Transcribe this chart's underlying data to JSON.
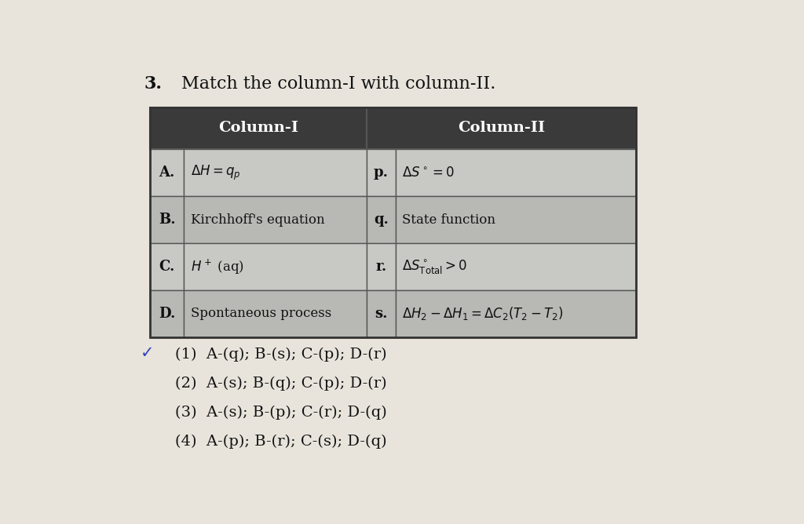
{
  "title_num": "3.",
  "title_text": "Match the column-I with column-II.",
  "header_col1": "Column-I",
  "header_col2": "Column-II",
  "col1_labels": [
    "A.",
    "B.",
    "C.",
    "D."
  ],
  "col1_content": [
    "$\\Delta H = q_p$",
    "Kirchhoff's equation",
    "$H^+$ (aq)",
    "Spontaneous process"
  ],
  "col2_labels": [
    "p.",
    "q.",
    "r.",
    "s."
  ],
  "col2_content": [
    "$\\Delta S^\\circ = 0$",
    "State function",
    "$\\Delta S^\\circ_{\\mathrm{Total}} > 0$",
    "$\\Delta H_2 - \\Delta H_1 = \\Delta C_2(T_2 - T_2)$"
  ],
  "options": [
    "(1)  A-(q); B-(s); C-(p); D-(r)",
    "(2)  A-(s); B-(q); C-(p); D-(r)",
    "(3)  A-(s); B-(p); C-(r); D-(q)",
    "(4)  A-(p); B-(r); C-(s); D-(q)"
  ],
  "bg_color": "#e8e4dc",
  "header_bg": "#3a3a3a",
  "header_fg": "#ffffff",
  "row_bg_A": "#c8c8c4",
  "row_bg_B": "#b8b8b4",
  "row_bg_C": "#c8c8c4",
  "row_bg_D": "#b8b8b4",
  "border_color": "#555555",
  "text_color": "#111111",
  "checkmark_color": "#3344bb"
}
